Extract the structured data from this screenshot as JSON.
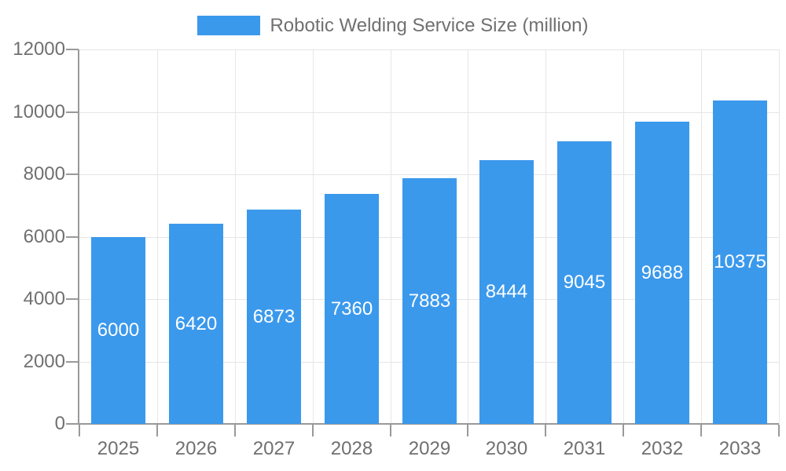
{
  "legend": {
    "label": "Robotic Welding Service Size (million)",
    "position": "top"
  },
  "colors": {
    "bar": "#3B99EC",
    "axis": "#999999",
    "grid": "#E6E6E6",
    "tick_text": "#707070",
    "legend_text": "#707070",
    "bar_label_text": "#FFFFFF",
    "background": "#FFFFFF"
  },
  "chart_data": {
    "type": "bar",
    "title": "Robotic Welding Service Size (million)",
    "categories": [
      "2025",
      "2026",
      "2027",
      "2028",
      "2029",
      "2030",
      "2031",
      "2032",
      "2033"
    ],
    "series": [
      {
        "name": "Robotic Welding Service Size (million)",
        "values": [
          6000,
          6420,
          6873,
          7360,
          7883,
          8444,
          9045,
          9688,
          10375
        ]
      }
    ],
    "bar_value_labels": [
      "6000",
      "6420",
      "6873",
      "7360",
      "7883",
      "8444",
      "9045",
      "9688",
      "10375"
    ],
    "xlabel": "",
    "ylabel": "",
    "ylim": [
      0,
      12000
    ],
    "yticks": [
      0,
      2000,
      4000,
      6000,
      8000,
      10000,
      12000
    ],
    "ytick_labels": [
      "0",
      "2000",
      "4000",
      "6000",
      "8000",
      "10000",
      "12000"
    ],
    "grid": true,
    "legend_position": "top"
  }
}
